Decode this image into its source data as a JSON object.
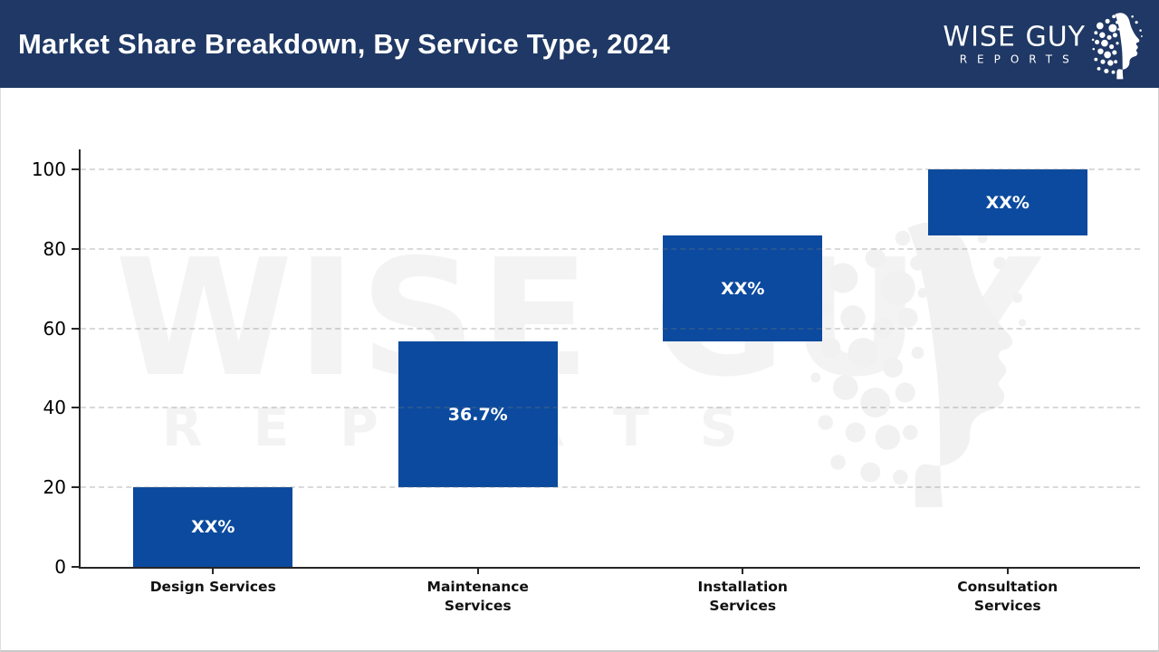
{
  "header": {
    "title": "Market Share Breakdown, By Service Type, 2024",
    "logo": {
      "name_line": "WISE GUY",
      "sub_line": "REPORTS"
    }
  },
  "watermark": {
    "brand": "WISE GUY",
    "sub": "REPORTS"
  },
  "colors": {
    "header_bg": "#1f3865",
    "bar": "#0b4a9e",
    "bar_label": "#ffffff",
    "axis": "#262626",
    "grid": "#d9d9d9",
    "watermark": "#f3f3f3"
  },
  "chart_data": {
    "type": "bar",
    "subtype": "waterfall",
    "title": "Market Share Breakdown, By Service Type, 2024",
    "xlabel": "",
    "ylabel": "",
    "ylim": [
      0,
      100
    ],
    "yticks": [
      0,
      20,
      40,
      60,
      80,
      100
    ],
    "grid": "horizontal-dashed",
    "legend": "none",
    "bar_color": "#0b4a9e",
    "categories": [
      "Design Services",
      "Maintenance Services",
      "Installation Services",
      "Consultation Services"
    ],
    "category_lines": [
      [
        "Design Services"
      ],
      [
        "Maintenance",
        "Services"
      ],
      [
        "Installation",
        "Services"
      ],
      [
        "Consultation",
        "Services"
      ]
    ],
    "bars": [
      {
        "category": "Design Services",
        "start": 0,
        "end": 20,
        "value": 20,
        "label": "XX%"
      },
      {
        "category": "Maintenance Services",
        "start": 20,
        "end": 56.7,
        "value": 36.7,
        "label": "36.7%"
      },
      {
        "category": "Installation Services",
        "start": 56.7,
        "end": 83.3,
        "value": 26.6,
        "label": "XX%"
      },
      {
        "category": "Consultation Services",
        "start": 83.3,
        "end": 100,
        "value": 16.7,
        "label": "XX%"
      }
    ]
  }
}
